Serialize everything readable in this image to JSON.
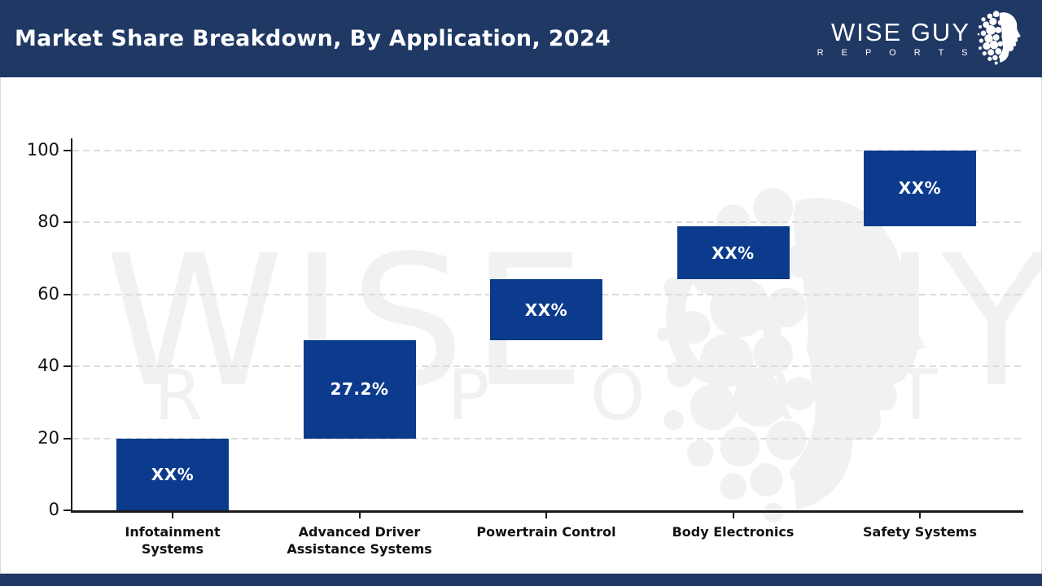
{
  "header": {
    "title": "Market Share Breakdown, By Application, 2024",
    "logo": {
      "line1": "WISE GUY",
      "line2": "R E P O R T S"
    }
  },
  "watermark": {
    "line1": "WISE GUY",
    "line2": "R E P O R T S"
  },
  "colors": {
    "header_bg": "#1f3864",
    "bar_fill": "#0c3b8d",
    "gridline": "#dcdcdc",
    "watermark": "#f1f1f1"
  },
  "chart_data": {
    "type": "bar",
    "subtype": "floating-waterfall",
    "title": "Market Share Breakdown, By Application, 2024",
    "categories": [
      "Infotainment Systems",
      "Advanced Driver Assistance Systems",
      "Powertrain Control",
      "Body Electronics",
      "Safety Systems"
    ],
    "bars": [
      {
        "category": "Infotainment Systems",
        "label_lines": [
          "Infotainment",
          "Systems"
        ],
        "start": 0,
        "end": 20,
        "label": "XX%"
      },
      {
        "category": "Advanced Driver Assistance Systems",
        "label_lines": [
          "Advanced Driver",
          "Assistance Systems"
        ],
        "start": 20,
        "end": 47.2,
        "label": "27.2%"
      },
      {
        "category": "Powertrain Control",
        "label_lines": [
          "Powertrain Control"
        ],
        "start": 47.2,
        "end": 64.2,
        "label": "XX%"
      },
      {
        "category": "Body Electronics",
        "label_lines": [
          "Body Electronics"
        ],
        "start": 64.2,
        "end": 79,
        "label": "XX%"
      },
      {
        "category": "Safety Systems",
        "label_lines": [
          "Safety Systems"
        ],
        "start": 79,
        "end": 100,
        "label": "XX%"
      }
    ],
    "y_ticks": [
      0,
      20,
      40,
      60,
      80,
      100
    ],
    "ylim": [
      0,
      105
    ],
    "xlabel": "",
    "ylabel": "",
    "grid": "dashed-horizontal",
    "legend": "none",
    "bar_color": "#0c3b8d"
  }
}
